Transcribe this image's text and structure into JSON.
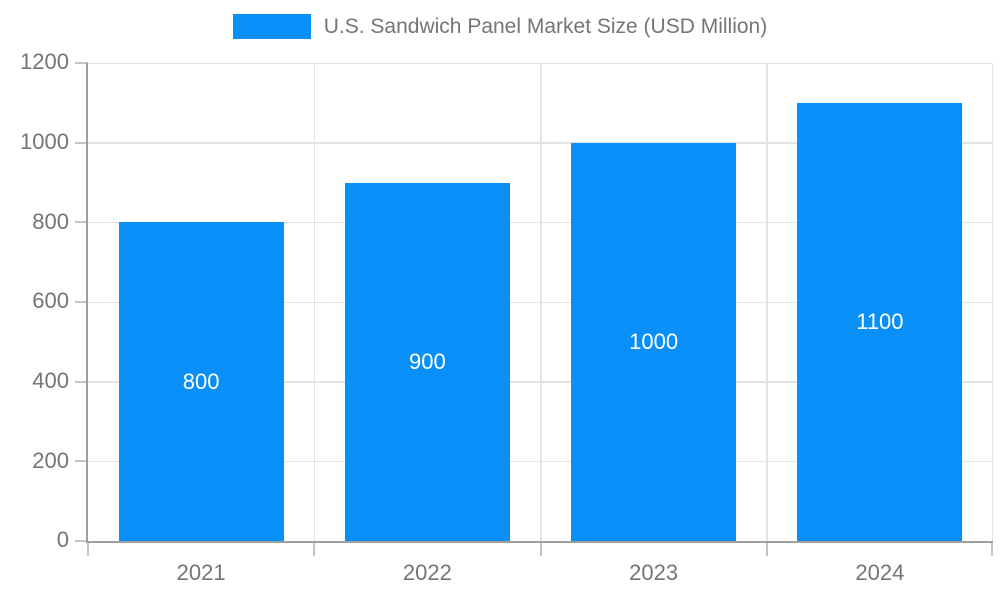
{
  "chart_data": {
    "type": "bar",
    "title": "U.S. Sandwich Panel Market Size (USD Million)",
    "categories": [
      "2021",
      "2022",
      "2023",
      "2024"
    ],
    "values": [
      800,
      900,
      1000,
      1100
    ],
    "data_labels": [
      "800",
      "900",
      "1000",
      "1100"
    ],
    "xlabel": "",
    "ylabel": "",
    "ylim": [
      0,
      1200
    ],
    "ytick_step": 200,
    "yticks": [
      0,
      200,
      400,
      600,
      800,
      1000,
      1200
    ],
    "grid": true,
    "legend": {
      "position": "top",
      "label": "U.S. Sandwich Panel Market Size (USD Million)"
    },
    "colors": {
      "bar": "#0890F8",
      "axis": "#9E9E9E",
      "tick": "#C4C4C4",
      "gridline": "#E3E3E3",
      "tick_text": "#757575",
      "data_label": "#FFFFFF",
      "background": "#FFFFFF"
    }
  }
}
